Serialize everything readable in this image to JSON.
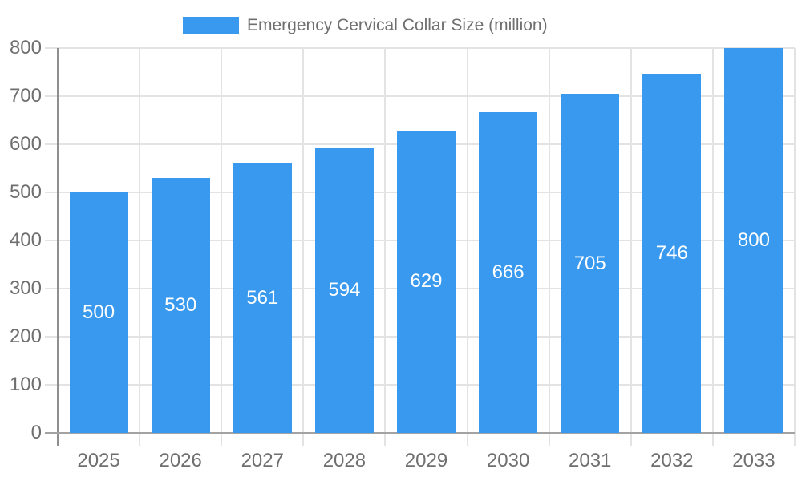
{
  "chart_data": {
    "type": "bar",
    "title": "Emergency Cervical Collar Size (million)",
    "categories": [
      "2025",
      "2026",
      "2027",
      "2028",
      "2029",
      "2030",
      "2031",
      "2032",
      "2033"
    ],
    "values": [
      500,
      530,
      561,
      594,
      629,
      666,
      705,
      746,
      800
    ],
    "bar_labels": [
      "500",
      "530",
      "561",
      "594",
      "629",
      "666",
      "705",
      "746",
      "800"
    ],
    "xlabel": "",
    "ylabel": "",
    "ylim": [
      0,
      800
    ],
    "ytick_step": 100,
    "ytick_labels": [
      "0",
      "100",
      "200",
      "300",
      "400",
      "500",
      "600",
      "700",
      "800"
    ],
    "grid": true,
    "legend": {
      "position": "top",
      "label": "Emergency Cervical Collar Size (million)"
    },
    "colors": {
      "bar": "#3999EE",
      "grid": "#E3E3E3",
      "axis": "#A3A3A3",
      "y_axis": "#8F8F8F",
      "tick_text": "#6F6F6F",
      "bar_label_text": "#FFFFFF",
      "legend_text": "#6F6F6F",
      "background": "#FFFFFF"
    }
  }
}
